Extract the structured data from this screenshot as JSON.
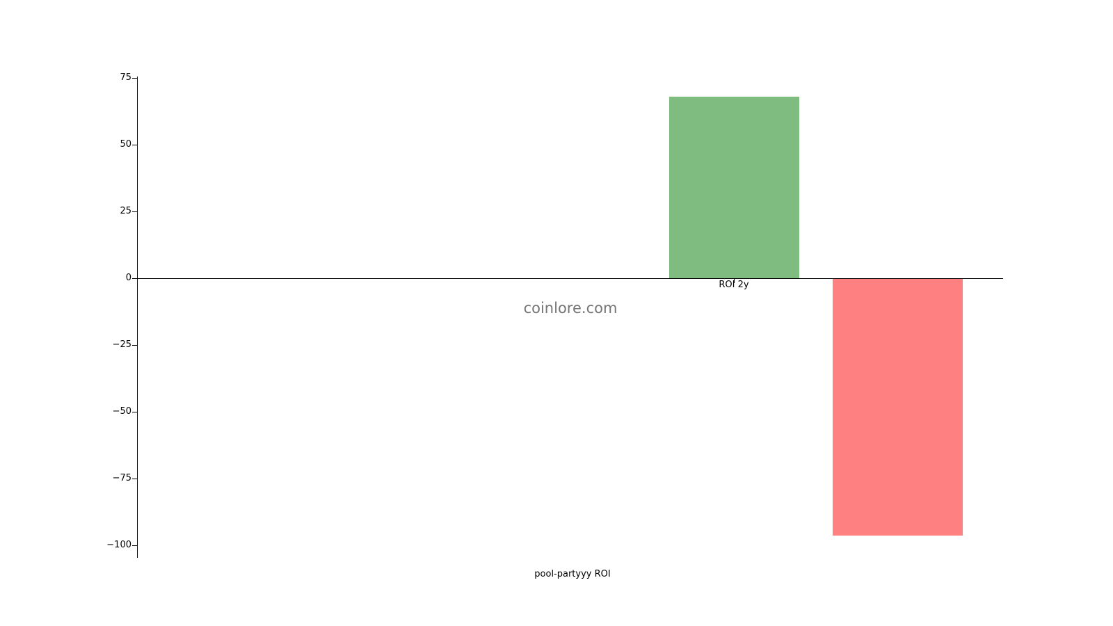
{
  "page": {
    "background": "#ffffff"
  },
  "watermark": {
    "text": "coinlore.com",
    "color": "#757575"
  },
  "chart_data": {
    "type": "bar",
    "title": "",
    "xlabel": "pool-partyyy ROI",
    "ylabel": "",
    "categories": [
      "ROI 2y",
      ""
    ],
    "values": [
      68,
      -96
    ],
    "bar_colors": [
      "#7ebc80",
      "#ff8080"
    ],
    "yticks": [
      75,
      50,
      25,
      0,
      -25,
      -50,
      -75,
      -100
    ],
    "ytick_labels": [
      "75",
      "50",
      "25",
      "0",
      "−25",
      "−50",
      "−75",
      "−100"
    ],
    "ylim": [
      -104,
      76
    ],
    "axis_color": "#000000",
    "grid": false,
    "legend": false,
    "zero_line": true
  }
}
